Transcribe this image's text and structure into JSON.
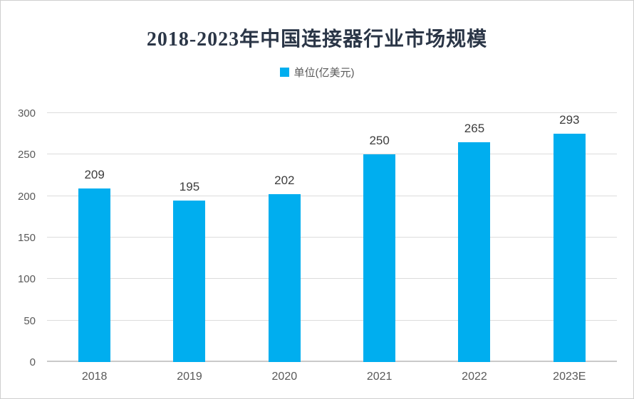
{
  "title": "2018-2023年中国连接器行业市场规模",
  "legend": {
    "label": "单位(亿美元)",
    "swatch_color": "#00AEEF"
  },
  "colors": {
    "bar": "#00AEEF",
    "gridline": "#DCDCDC",
    "baseline": "#C9C9C9",
    "axis_text": "#595959",
    "value_text": "#3D3D3D",
    "title_text": "#2B3647",
    "frame_border": "#CFCFCF",
    "background": "#FFFFFF"
  },
  "chart_data": {
    "type": "bar",
    "title": "2018-2023年中国连接器行业市场规模",
    "legend": [
      "单位(亿美元)"
    ],
    "legend_position": "top-center",
    "categories": [
      "2018",
      "2019",
      "2020",
      "2021",
      "2022",
      "2023E"
    ],
    "values": [
      209,
      195,
      202,
      250,
      265,
      293
    ],
    "xlabel": "",
    "ylabel": "",
    "ylim": [
      0,
      300
    ],
    "yticks": [
      0,
      50,
      100,
      150,
      200,
      250,
      300
    ],
    "grid": true,
    "bar_color": "#00AEEF"
  }
}
